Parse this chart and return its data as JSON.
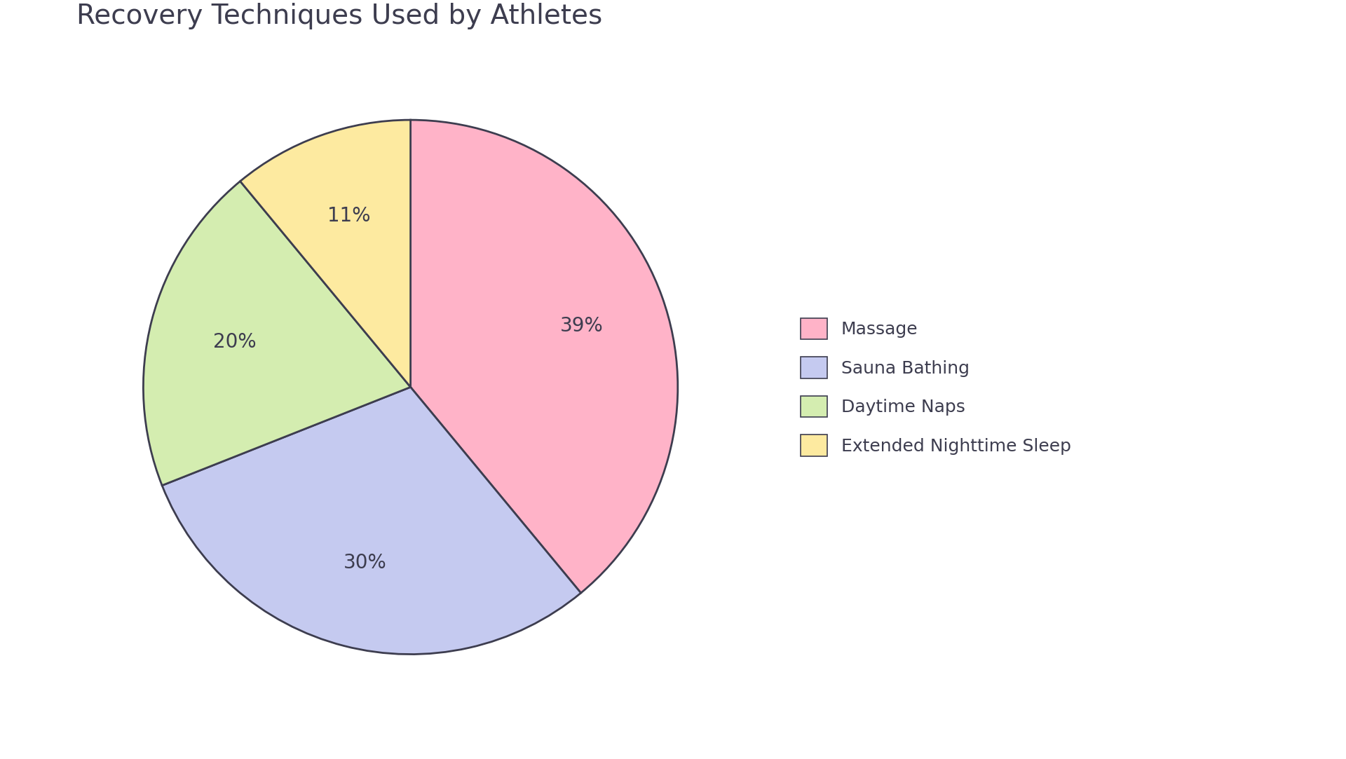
{
  "title": "Recovery Techniques Used by Athletes",
  "labels": [
    "Massage",
    "Sauna Bathing",
    "Daytime Naps",
    "Extended Nighttime Sleep"
  ],
  "values": [
    39,
    30,
    20,
    11
  ],
  "colors": [
    "#FFB3C8",
    "#C5CAF0",
    "#D4EDB0",
    "#FDEAA0"
  ],
  "edge_color": "#3d3d4f",
  "edge_width": 2.0,
  "text_color": "#3d3d4f",
  "background_color": "#ffffff",
  "title_fontsize": 28,
  "label_fontsize": 20,
  "legend_fontsize": 18,
  "startangle": 90,
  "pct_distance": 0.68
}
